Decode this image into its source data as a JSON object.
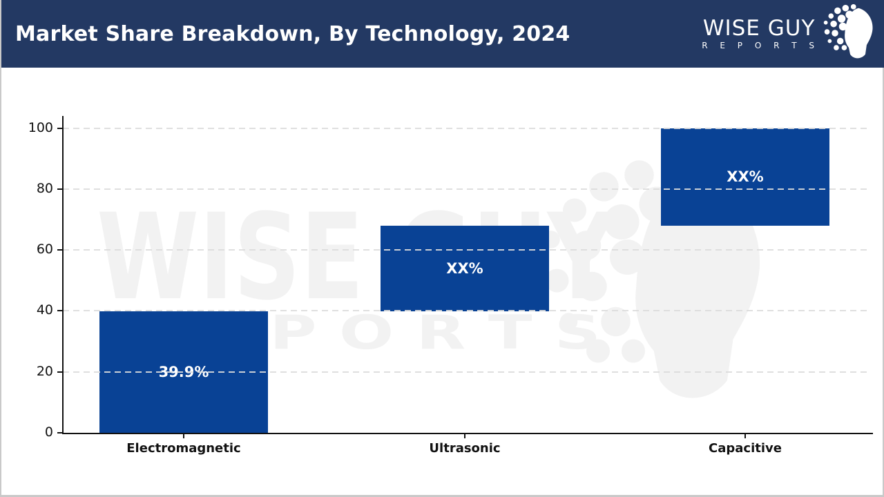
{
  "header": {
    "title": "Market Share Breakdown, By Technology, 2024",
    "logo": {
      "name": "WISE GUY",
      "sub": "R E P O R T S"
    }
  },
  "watermark": {
    "name": "WISE GUY",
    "sub": "R E P O R T S"
  },
  "colors": {
    "header_bg": "#233963",
    "bar": "#094295",
    "grid": "#dcdcdc",
    "axis": "#111111",
    "text": "#111111",
    "label_on_bar": "#ffffff",
    "watermark": "#f2f2f2"
  },
  "chart_data": {
    "type": "bar",
    "subtype": "floating-waterfall",
    "title": "Market Share Breakdown, By Technology, 2024",
    "categories": [
      "Electromagnetic",
      "Ultrasonic",
      "Capacitive"
    ],
    "segments": [
      {
        "category": "Electromagnetic",
        "start": 0,
        "end": 39.9,
        "delta": 39.9,
        "label": "39.9%"
      },
      {
        "category": "Ultrasonic",
        "start": 39.9,
        "end": 67.9,
        "delta": 28.0,
        "label": "XX%"
      },
      {
        "category": "Capacitive",
        "start": 67.9,
        "end": 100,
        "delta": 32.1,
        "label": "XX%"
      }
    ],
    "xlabel": "",
    "ylabel": "",
    "ylim": [
      0,
      100
    ],
    "yticks": [
      0,
      20,
      40,
      60,
      80,
      100
    ],
    "grid": "horizontal-dashed",
    "legend": "none",
    "bar_color": "#094295"
  }
}
